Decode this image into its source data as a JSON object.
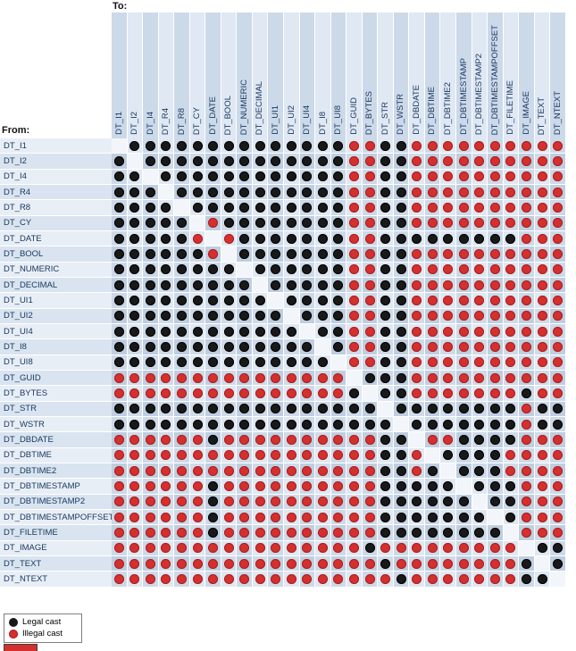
{
  "matrix": {
    "to_label": "To:",
    "from_label": "From:"
  },
  "legend": {
    "legal_label": "Legal cast",
    "illegal_label": "Illegal cast",
    "legal_color": "#191919",
    "illegal_color": "#d3302f"
  },
  "chart_data": {
    "type": "heatmap",
    "x_axis_label": "To:",
    "y_axis_label": "From:",
    "legend": [
      {
        "label": "Legal cast",
        "color": "#191919"
      },
      {
        "label": "Illegal cast",
        "color": "#d3302f"
      }
    ],
    "cell_encoding": {
      "B": "legal cast (black dot)",
      "R": "illegal cast (red dot)",
      ".": "same type (no dot)"
    },
    "types": [
      "DT_I1",
      "DT_I2",
      "DT_I4",
      "DT_R4",
      "DT_R8",
      "DT_CY",
      "DT_DATE",
      "DT_BOOL",
      "DT_NUMERIC",
      "DT_DECIMAL",
      "DT_UI1",
      "DT_UI2",
      "DT_UI4",
      "DT_I8",
      "DT_UI8",
      "DT_GUID",
      "DT_BYTES",
      "DT_STR",
      "DT_WSTR",
      "DT_DBDATE",
      "DT_DBTIME",
      "DT_DBTIME2",
      "DT_DBTIMESTAMP",
      "DT_DBTIMESTAMP2",
      "DT_DBTIMESTAMPOFFSET",
      "DT_FILETIME",
      "DT_IMAGE",
      "DT_TEXT",
      "DT_NTEXT"
    ],
    "rows": [
      ".BBBBBBBBBBBBBBRRBBRRRRRRRRRR",
      "B.BBBBBBBBBBBBBRRBBRRRRRRRRRR",
      "BB.BBBBBBBBBBBBRRBBRRRRRRRRRR",
      "BBB.BBBBBBBBBBBRRBBRRRRRRRRRR",
      "BBBB.BBBBBBBBBBRRBBRRRRRRRRRR",
      "BBBBB.RBBBBBBBBRRBBRRRRRRRRRR",
      "BBBBBR.RBBBBBBBRRBBBBBBBBBRRR",
      "BBBBBBR.BBBBBBBRRBBRRRRRRRRRR",
      "BBBBBBBB.BBBBBBRRBBRRRRRRRRRR",
      "BBBBBBBBB.BBBBBRRBBRRRRRRRRRR",
      "BBBBBBBBBB.BBBBRRBBRRRRRRRRRR",
      "BBBBBBBBBBB.BBBRRBBRRRRRRRRRR",
      "BBBBBBBBBBBB.BBRRBBRRRRRRRRRR",
      "BBBBBBBBBBBBB.BRRBBRRRRRRRRRR",
      "BBBBBBBBBBBBBB.RRBBRRRRRRRRRR",
      "RRRRRRRRRRRRRRR.BBBRRRRRRRRRR",
      "RRRRRRRRRRRRRRRB.BBRRRRRRRBRR",
      "BBBBBBBBBBBBBBBBB.BBBBBBBBRBB",
      "BBBBBBBBBBBBBBBBBB.BBBBBBBRBB",
      "RRRRRRBRRRRRRRRRRBB.RRBBBBRRR",
      "RRRRRRRRRRRRRRRRRBBR.BBBBRRRR",
      "RRRRRRRRRRRRRRRRRBBRB.BBBRRRR",
      "RRRRRRBRRRRRRRRRRBBBBB.BBBRRR",
      "RRRRRRBRRRRRRRRRRBBBBBB.BBRRR",
      "RRRRRRBRRRRRRRRRRBBBBBBB.BRRR",
      "RRRRRRBRRRRRRRRRRBBBBBBBB.RRR",
      "RRRRRRRRRRRRRRRRBRRRRRRRRR.BB",
      "RRRRRRRRRRRRRRRRRBRRRRRRRRB.B",
      "RRRRRRRRRRRRRRRRRRBRRRRRRRBB."
    ]
  }
}
